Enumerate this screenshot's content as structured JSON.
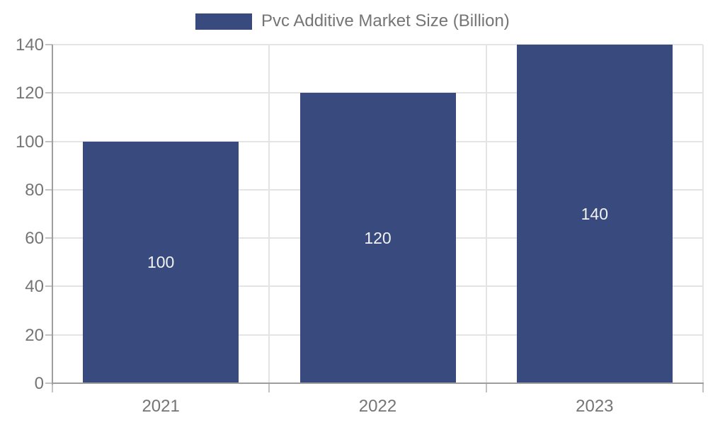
{
  "legend": {
    "label": "Pvc Additive Market Size (Billion)"
  },
  "chart_data": {
    "type": "bar",
    "title": "Pvc Additive Market Size (Billion)",
    "categories": [
      "2021",
      "2022",
      "2023"
    ],
    "values": [
      100,
      120,
      140
    ],
    "series_name": "Pvc Additive Market Size (Billion)",
    "xlabel": "",
    "ylabel": "",
    "ylim": [
      0,
      140
    ],
    "yticks": [
      0,
      20,
      40,
      60,
      80,
      100,
      120,
      140
    ],
    "grid": true,
    "legend_position": "top-center",
    "value_labels": [
      "100",
      "120",
      "140"
    ],
    "value_label_position": "inside-center",
    "colors": {
      "bar": "#384A7E",
      "axis": "#9e9e9e",
      "grid": "#e4e4e4",
      "tick_text": "#757575",
      "value_label_text": "#f2f2f2",
      "background": "#ffffff"
    }
  }
}
